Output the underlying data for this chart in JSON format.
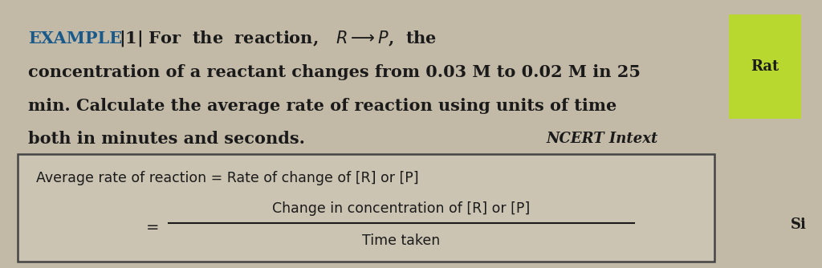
{
  "bg_color": "#c2b9a7",
  "box_bg_color": "#ccc4b2",
  "box_border_color": "#444444",
  "text_color": "#1a1a1a",
  "example_color": "#1a5a8a",
  "highlight_color": "#b8d830",
  "figsize": [
    10.24,
    3.34
  ],
  "dpi": 100,
  "line1_example": "EXAMPLE",
  "line1_rest": "|1| For  the  reaction,   $R \\longrightarrow P$,  the",
  "line2": "concentration of a reactant changes from 0.03 M to 0.02 M in 25",
  "line3": "min. Calculate the average rate of reaction using units of time",
  "line4_left": "both in minutes and seconds.",
  "line4_right": "NCERT Intext",
  "box_line1": "Average rate of reaction = Rate of change of [R] or [P]",
  "box_numerator": "Change in concentration of [R] or [P]",
  "box_denominator": "Time taken",
  "box_equals": "=",
  "side_top": "Rat",
  "side_bottom": "Si"
}
